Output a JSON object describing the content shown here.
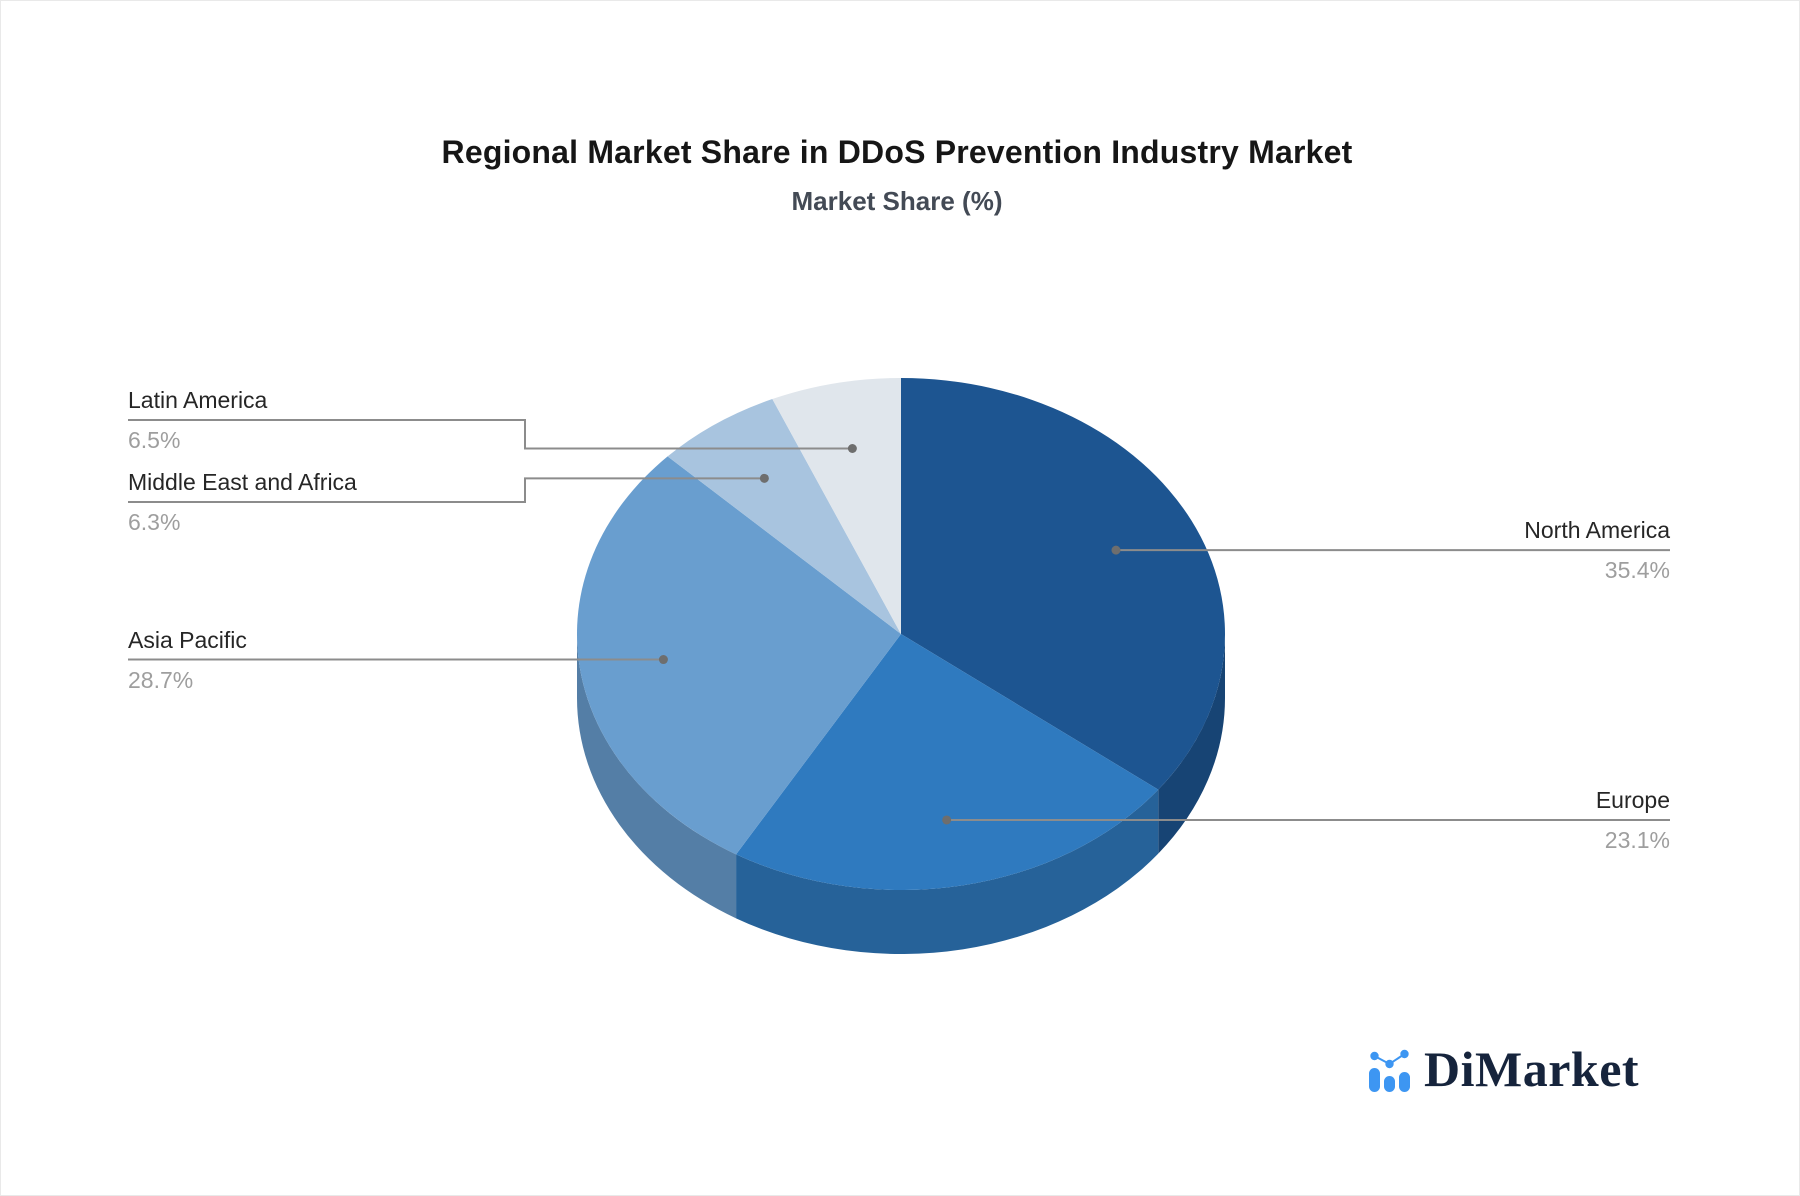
{
  "title": "Regional Market Share in DDoS Prevention Industry Market",
  "subtitle": "Market Share (%)",
  "chart_data": {
    "type": "pie",
    "title": "Regional Market Share in DDoS Prevention Industry Market",
    "subtitle": "Market Share (%)",
    "unit": "%",
    "style": "3d-pie",
    "start_angle_deg": 0,
    "direction": "clockwise",
    "legend_position": "callout-labels",
    "label_line_color": "#8c8c8c",
    "label_dot_color": "#6e6e6e",
    "slices": [
      {
        "label": "North America",
        "value": 35.4,
        "display": "35.4%",
        "color": "#1d5591",
        "side_color": "#174474"
      },
      {
        "label": "Europe",
        "value": 23.1,
        "display": "23.1%",
        "color": "#2f7abf",
        "side_color": "#266299"
      },
      {
        "label": "Asia Pacific",
        "value": 28.7,
        "display": "28.7%",
        "color": "#699ecf",
        "side_color": "#547ea6"
      },
      {
        "label": "Middle East and Africa",
        "value": 6.3,
        "display": "6.3%",
        "color": "#a8c4df",
        "side_color": "#869db2"
      },
      {
        "label": "Latin America",
        "value": 6.5,
        "display": "6.5%",
        "color": "#e0e6ec",
        "side_color": "#b3b8bd"
      }
    ]
  },
  "logo": {
    "text": "DiMarket",
    "icon": "bar-chart-with-trend-dots-icon",
    "icon_color": "#3d96f2",
    "text_color": "#16243c"
  }
}
